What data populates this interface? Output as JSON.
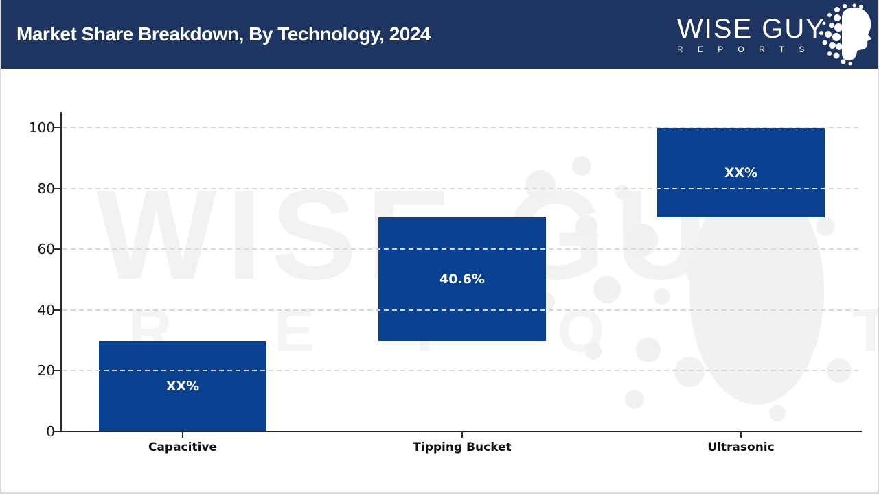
{
  "header": {
    "title": "Market Share Breakdown, By Technology, 2024",
    "background_color": "#1F3561",
    "logo": {
      "primary": "WISE GUY",
      "secondary": "R E P O R T S"
    }
  },
  "watermark": {
    "line1": "WISE GUY",
    "line2": "R E P O R T S"
  },
  "chart_data": {
    "type": "bar",
    "subtype": "floating-stacked-segments",
    "title": "Market Share Breakdown, By Technology, 2024",
    "categories": [
      "Capacitive",
      "Tipping Bucket",
      "Ultrasonic"
    ],
    "segments": [
      {
        "category": "Capacitive",
        "start": 0,
        "end": 29.8,
        "label": "XX%"
      },
      {
        "category": "Tipping Bucket",
        "start": 29.8,
        "end": 70.4,
        "label": "40.6%"
      },
      {
        "category": "Ultrasonic",
        "start": 70.4,
        "end": 100,
        "label": "XX%"
      }
    ],
    "visible_values": {
      "Tipping Bucket": "40.6%"
    },
    "ylim": [
      0,
      100
    ],
    "yticks": [
      0,
      20,
      40,
      60,
      80,
      100
    ],
    "grid": "horizontal dashed, drawn over bars",
    "legend": "none",
    "bar_color": "#0A4191",
    "bar_label_color": "#FFFFFF",
    "axis_color": "#2B2B2B",
    "tick_label_color": "#1A1A1A",
    "gridline_color": "#D7D7D7"
  }
}
